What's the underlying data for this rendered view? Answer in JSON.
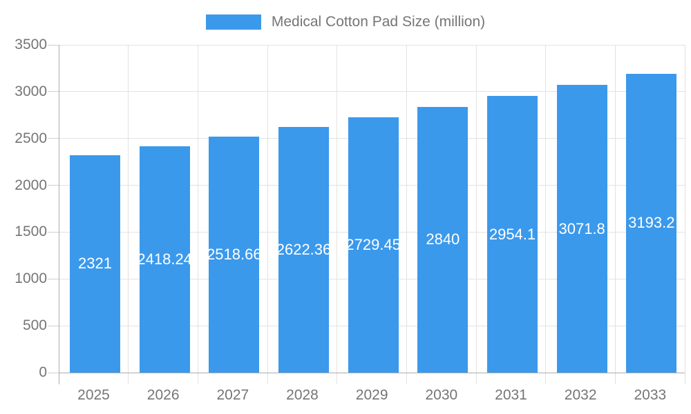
{
  "legend": {
    "label": "Medical Cotton Pad Size (million)"
  },
  "chart_data": {
    "type": "bar",
    "title": "Medical Cotton Pad Size (million)",
    "legend_entries": [
      "Medical Cotton Pad Size (million)"
    ],
    "legend_position": "top-center",
    "categories": [
      "2025",
      "2026",
      "2027",
      "2028",
      "2029",
      "2030",
      "2031",
      "2032",
      "2033"
    ],
    "values": [
      2321,
      2418.24,
      2518.66,
      2622.36,
      2729.45,
      2840,
      2954.1,
      3071.8,
      3193.2
    ],
    "bar_value_labels": [
      "2321",
      "2418.24",
      "2518.66",
      "2622.36",
      "2729.45",
      "2840",
      "2954.1",
      "3071.8",
      "3193.2"
    ],
    "xlabel": "",
    "ylabel": "",
    "ylim": [
      0,
      3500
    ],
    "yticks": [
      0,
      500,
      1000,
      1500,
      2000,
      2500,
      3000,
      3500
    ],
    "grid": true,
    "colors": {
      "bar": "#3b99ec",
      "bar_label_text": "#ffffff",
      "axis_text": "#757575",
      "legend_text": "#757575",
      "gridline": "#e2e2e2",
      "axis_line": "#ababab",
      "tick_mark": "#cfcfcf",
      "background": "#ffffff"
    }
  }
}
